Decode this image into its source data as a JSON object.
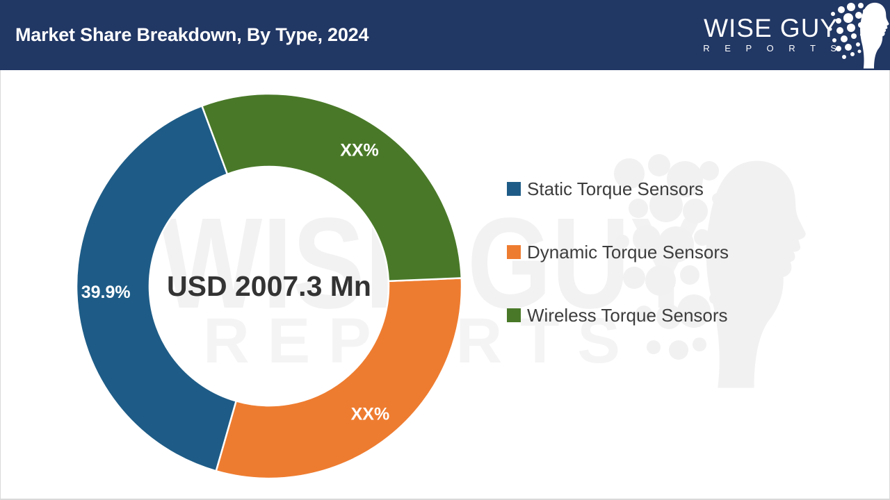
{
  "header": {
    "title": "Market Share Breakdown, By Type, 2024"
  },
  "logo": {
    "line1": "WISE GUY",
    "line2": "R E P O R T S"
  },
  "watermark": {
    "line1": "WISE GUY",
    "line2": "R E P O R T S"
  },
  "chart_data": {
    "type": "pie",
    "subtype": "donut",
    "title": "Market Share Breakdown, By Type, 2024",
    "center_label": "USD 2007.3 Mn",
    "start_angle_deg": 110.4,
    "direction": "counterclockwise",
    "legend_position": "right",
    "colors": {
      "static": "#1E5C87",
      "dynamic": "#EE7C30",
      "wireless": "#497928"
    },
    "segments": [
      {
        "name": "Static Torque Sensors",
        "display_label": "39.9%",
        "value_pct": 39.9,
        "color": "#1E5C87"
      },
      {
        "name": "Dynamic Torque Sensors",
        "display_label": "XX%",
        "value_pct": 30.1,
        "color": "#EE7C30"
      },
      {
        "name": "Wireless Torque Sensors",
        "display_label": "XX%",
        "value_pct": 30.0,
        "color": "#497928"
      }
    ]
  },
  "legend": {
    "items": [
      {
        "label": "Static Torque Sensors",
        "color": "#1E5C87"
      },
      {
        "label": "Dynamic Torque Sensors",
        "color": "#EE7C30"
      },
      {
        "label": "Wireless Torque Sensors",
        "color": "#497928"
      }
    ]
  }
}
